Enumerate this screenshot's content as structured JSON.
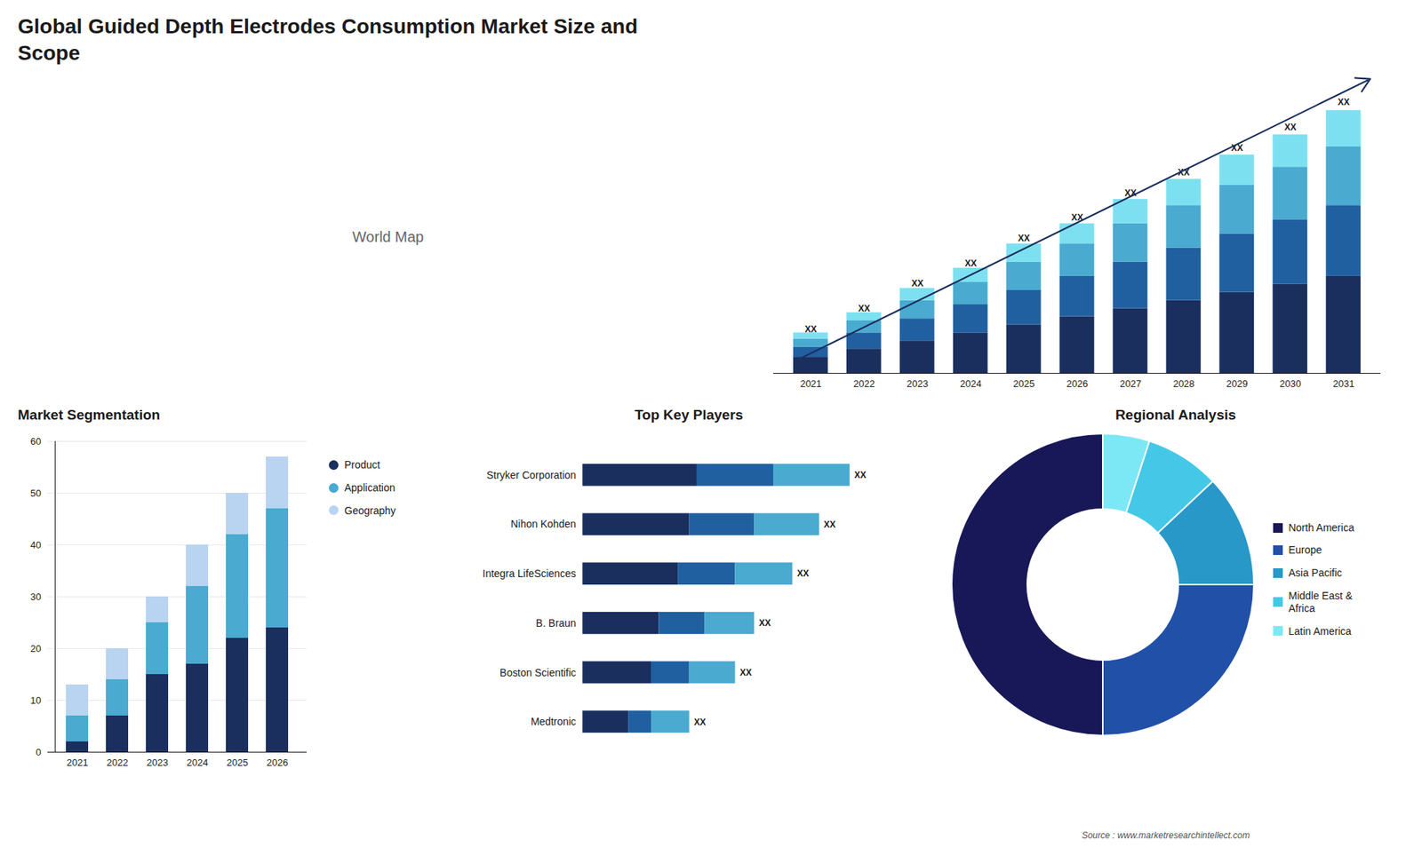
{
  "chart_data": [
    {
      "type": "bar",
      "title": "Global Guided Depth Electrodes Consumption Market Size and\nScope",
      "stacked": true,
      "categories": [
        "2021",
        "2022",
        "2023",
        "2024",
        "2025",
        "2026",
        "2027",
        "2028",
        "2029",
        "2030",
        "2031"
      ],
      "series": [
        {
          "color": "#1a2f5e",
          "values": [
            0.8,
            1.2,
            1.6,
            2.0,
            2.4,
            2.8,
            3.2,
            3.6,
            4.0,
            4.4,
            4.8
          ]
        },
        {
          "color": "#2060a0",
          "values": [
            0.5,
            0.8,
            1.1,
            1.4,
            1.7,
            2.0,
            2.3,
            2.6,
            2.9,
            3.2,
            3.5
          ]
        },
        {
          "color": "#4aaad0",
          "values": [
            0.4,
            0.6,
            0.9,
            1.1,
            1.4,
            1.6,
            1.9,
            2.1,
            2.4,
            2.6,
            2.9
          ]
        },
        {
          "color": "#7de0f0",
          "values": [
            0.3,
            0.4,
            0.6,
            0.7,
            0.9,
            1.0,
            1.2,
            1.3,
            1.5,
            1.6,
            1.8
          ]
        }
      ],
      "ylim": [
        0,
        16.25
      ],
      "tick_labels": "x",
      "total_labels": [
        "XX",
        "XX",
        "XX",
        "XX",
        "XX",
        "XX",
        "XX",
        "XX",
        "XX",
        "XX",
        "XX"
      ],
      "annotations": [
        {
          "text": "World Map"
        },
        {
          "type": "arrow",
          "color": "#1a2f5e"
        }
      ]
    },
    {
      "type": "bar",
      "title": "Market Segmentation",
      "stacked": true,
      "categories": [
        "2021",
        "2022",
        "2023",
        "2024",
        "2025",
        "2026"
      ],
      "series": [
        {
          "name": "Product",
          "color": "#1a2f5e",
          "values": [
            2,
            7,
            15,
            17,
            22,
            24
          ]
        },
        {
          "name": "Application",
          "color": "#4aaad0",
          "values": [
            5,
            7,
            10,
            15,
            20,
            23
          ]
        },
        {
          "name": "Geography",
          "color": "#b8d4f0",
          "values": [
            6,
            6,
            5,
            8,
            8,
            10
          ]
        }
      ],
      "ylim": [
        0,
        60
      ],
      "yticks": [
        0,
        10,
        20,
        30,
        40,
        50,
        60
      ],
      "grid": true,
      "legend": "right"
    },
    {
      "type": "bar",
      "title": "Top Key Players",
      "orientation": "horizontal",
      "stacked": true,
      "categories": [
        "Stryker Corporation",
        "Nihon Kohden",
        "Integra LifeSciences",
        "B. Braun",
        "Boston Scientific",
        "Medtronic"
      ],
      "series": [
        {
          "color": "#1a2f5e",
          "values": [
            3.0,
            2.8,
            2.5,
            2.0,
            1.8,
            1.2
          ]
        },
        {
          "color": "#2060a0",
          "values": [
            2.0,
            1.7,
            1.5,
            1.2,
            1.0,
            0.6
          ]
        },
        {
          "color": "#4aaad0",
          "values": [
            2.0,
            1.7,
            1.5,
            1.3,
            1.2,
            1.0
          ]
        }
      ],
      "xlim": [
        0,
        8.4
      ],
      "tick_labels": "y",
      "total_labels": [
        "XX",
        "XX",
        "XX",
        "XX",
        "XX",
        "XX"
      ]
    },
    {
      "type": "pie",
      "title": "Regional Analysis",
      "categories": [
        "Latin America",
        "Middle East &\nAfrica",
        "Asia Pacific",
        "Europe",
        "North America"
      ],
      "values": [
        5,
        8,
        12,
        25,
        50
      ],
      "colors": [
        "#7de8f5",
        "#45c8e8",
        "#2898c8",
        "#2050a8",
        "#181858"
      ],
      "legend": "right",
      "annotations": [
        {
          "text": "Source : www.marketresearchintellect.com"
        }
      ]
    }
  ]
}
